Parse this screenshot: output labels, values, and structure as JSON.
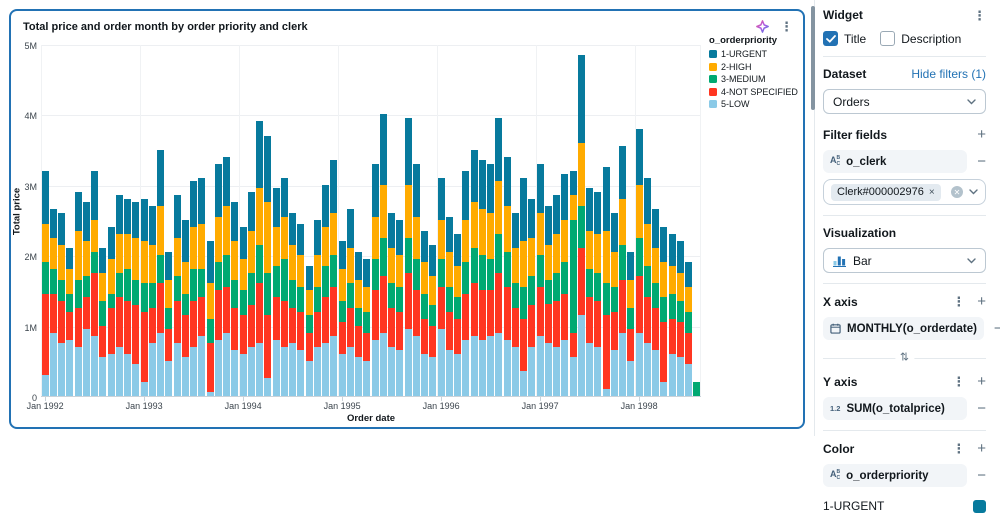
{
  "accent": "#2272B4",
  "card": {
    "title": "Total price and order month by order priority and clerk",
    "kebab_icon": "kebab-menu",
    "sparkle_icon": "ai-assistant"
  },
  "chart_data": {
    "type": "bar",
    "stacked": true,
    "title": "Total price and order month by order priority and clerk",
    "xlabel": "Order date",
    "ylabel": "Total price",
    "values_unit": "millions",
    "ylim": [
      0,
      5
    ],
    "y_ticks": [
      "0",
      "1M",
      "2M",
      "3M",
      "4M",
      "5M"
    ],
    "legend_title": "o_orderpriority",
    "legend_order": [
      "1-URGENT",
      "2-HIGH",
      "3-MEDIUM",
      "4-NOT SPECIFIED",
      "5-LOW"
    ],
    "legend_position": "right",
    "grid": true,
    "categories": [
      "Jan 1992",
      "Feb 1992",
      "Mar 1992",
      "Apr 1992",
      "May 1992",
      "Jun 1992",
      "Jul 1992",
      "Aug 1992",
      "Sep 1992",
      "Oct 1992",
      "Nov 1992",
      "Dec 1992",
      "Jan 1993",
      "Feb 1993",
      "Mar 1993",
      "Apr 1993",
      "May 1993",
      "Jun 1993",
      "Jul 1993",
      "Aug 1993",
      "Sep 1993",
      "Oct 1993",
      "Nov 1993",
      "Dec 1993",
      "Jan 1994",
      "Feb 1994",
      "Mar 1994",
      "Apr 1994",
      "May 1994",
      "Jun 1994",
      "Jul 1994",
      "Aug 1994",
      "Sep 1994",
      "Oct 1994",
      "Nov 1994",
      "Dec 1994",
      "Jan 1995",
      "Feb 1995",
      "Mar 1995",
      "Apr 1995",
      "May 1995",
      "Jun 1995",
      "Jul 1995",
      "Aug 1995",
      "Sep 1995",
      "Oct 1995",
      "Nov 1995",
      "Dec 1995",
      "Jan 1996",
      "Feb 1996",
      "Mar 1996",
      "Apr 1996",
      "May 1996",
      "Jun 1996",
      "Jul 1996",
      "Aug 1996",
      "Sep 1996",
      "Oct 1996",
      "Nov 1996",
      "Dec 1996",
      "Jan 1997",
      "Feb 1997",
      "Mar 1997",
      "Apr 1997",
      "May 1997",
      "Jun 1997",
      "Jul 1997",
      "Aug 1997",
      "Sep 1997",
      "Oct 1997",
      "Nov 1997",
      "Dec 1997",
      "Jan 1998",
      "Feb 1998",
      "Mar 1998",
      "Apr 1998",
      "May 1998",
      "Jun 1998",
      "Jul 1998",
      "Aug 1998"
    ],
    "series": [
      {
        "name": "5-LOW",
        "color": "#8BCAE7",
        "values": [
          0.3,
          0.9,
          0.75,
          0.8,
          0.7,
          0.95,
          0.85,
          0.55,
          0.6,
          0.7,
          0.6,
          0.45,
          0.2,
          0.75,
          0.9,
          0.5,
          0.75,
          0.55,
          0.7,
          0.85,
          0.05,
          0.8,
          0.9,
          0.65,
          0.6,
          0.7,
          0.75,
          0.25,
          0.8,
          0.7,
          0.75,
          0.65,
          0.5,
          0.7,
          0.75,
          0.85,
          0.6,
          0.7,
          0.55,
          0.5,
          0.8,
          0.9,
          0.7,
          0.65,
          0.95,
          0.85,
          0.6,
          0.55,
          0.95,
          0.65,
          0.6,
          0.8,
          0.85,
          0.8,
          0.85,
          0.9,
          0.8,
          0.7,
          0.35,
          0.7,
          0.85,
          0.75,
          0.7,
          0.8,
          0.55,
          1.15,
          0.75,
          0.7,
          0.1,
          0.65,
          0.9,
          0.5,
          0.9,
          0.75,
          0.65,
          0.2,
          0.6,
          0.55,
          0.45,
          0
        ]
      },
      {
        "name": "4-NOT SPECIFIED",
        "color": "#FF3621",
        "values": [
          1.15,
          0.55,
          0.6,
          0.4,
          0.55,
          0.45,
          0.9,
          0.45,
          0.65,
          0.7,
          0.75,
          0.85,
          1.0,
          0.5,
          0.7,
          0.45,
          0.6,
          0.6,
          0.65,
          0.55,
          0.7,
          0.7,
          0.65,
          0.6,
          0.55,
          0.6,
          0.85,
          0.9,
          0.6,
          0.65,
          0.5,
          0.55,
          0.4,
          0.5,
          0.65,
          0.7,
          0.45,
          0.55,
          0.45,
          0.4,
          0.7,
          0.8,
          0.55,
          0.55,
          0.8,
          0.65,
          0.5,
          0.45,
          0.6,
          0.55,
          0.5,
          0.65,
          0.75,
          0.7,
          0.65,
          0.85,
          0.75,
          0.55,
          0.75,
          0.6,
          0.7,
          0.55,
          0.65,
          0.65,
          0.35,
          0.95,
          0.65,
          0.65,
          1.05,
          0.55,
          0.75,
          0.45,
          0.8,
          0.65,
          0.6,
          0.85,
          0.5,
          0.5,
          0.45,
          0
        ]
      },
      {
        "name": "3-MEDIUM",
        "color": "#00A972",
        "values": [
          0.45,
          0.35,
          0.3,
          0.25,
          0.4,
          0.3,
          0.3,
          0.35,
          0.2,
          0.35,
          0.45,
          0.35,
          0.4,
          0.35,
          0.4,
          0.3,
          0.35,
          0.3,
          0.45,
          0.4,
          0.35,
          0.4,
          0.45,
          0.4,
          0.35,
          0.45,
          0.55,
          0.6,
          0.45,
          0.6,
          0.4,
          0.35,
          0.25,
          0.35,
          0.45,
          0.45,
          0.3,
          0.35,
          0.25,
          0.3,
          0.45,
          0.55,
          0.35,
          0.35,
          0.5,
          0.45,
          0.35,
          0.3,
          0.4,
          0.35,
          0.3,
          0.45,
          0.5,
          0.5,
          0.45,
          0.55,
          0.5,
          0.35,
          0.45,
          0.4,
          0.45,
          0.35,
          0.4,
          0.45,
          1.6,
          0.6,
          0.4,
          0.4,
          0.45,
          0.35,
          0.5,
          0.3,
          0.55,
          0.45,
          0.35,
          0.35,
          0.35,
          0.3,
          0.3,
          0.2
        ]
      },
      {
        "name": "2-HIGH",
        "color": "#FFAB00",
        "values": [
          0.55,
          0.45,
          0.5,
          0.35,
          0.7,
          0.5,
          0.45,
          0.4,
          0.5,
          0.55,
          0.5,
          0.6,
          0.6,
          0.55,
          0.7,
          0.4,
          0.55,
          0.45,
          0.6,
          0.65,
          0.5,
          0.65,
          0.7,
          0.55,
          0.45,
          0.6,
          0.8,
          1.0,
          0.55,
          0.6,
          0.5,
          0.45,
          0.35,
          0.45,
          0.55,
          0.6,
          0.45,
          0.5,
          0.4,
          0.35,
          0.6,
          0.75,
          0.5,
          0.45,
          0.75,
          0.6,
          0.45,
          0.4,
          0.55,
          0.5,
          0.45,
          0.6,
          0.65,
          0.65,
          0.65,
          0.75,
          0.65,
          0.5,
          0.65,
          0.55,
          0.6,
          0.5,
          0.55,
          0.6,
          0.35,
          0.9,
          0.55,
          0.55,
          0.75,
          0.5,
          0.65,
          0.4,
          0.75,
          0.6,
          0.5,
          0.5,
          0.4,
          0.4,
          0.35,
          0
        ]
      },
      {
        "name": "1-URGENT",
        "color": "#077A9D",
        "values": [
          0.75,
          0.4,
          0.45,
          0.3,
          0.55,
          0.55,
          0.7,
          0.35,
          0.45,
          0.55,
          0.5,
          0.5,
          0.6,
          0.55,
          0.8,
          0.4,
          0.6,
          0.6,
          0.65,
          0.65,
          0.6,
          0.75,
          0.7,
          0.55,
          0.45,
          0.55,
          0.95,
          0.95,
          0.55,
          0.55,
          0.45,
          0.45,
          0.35,
          0.5,
          0.6,
          0.75,
          0.4,
          0.55,
          0.4,
          0.4,
          0.75,
          1.0,
          0.5,
          0.5,
          0.95,
          0.75,
          0.45,
          0.45,
          0.6,
          0.5,
          0.45,
          0.7,
          0.75,
          0.7,
          0.7,
          0.9,
          0.7,
          0.5,
          0.9,
          0.55,
          0.7,
          0.55,
          0.55,
          0.65,
          0.35,
          1.25,
          0.6,
          0.6,
          0.9,
          0.55,
          0.75,
          0.4,
          0.8,
          0.65,
          0.55,
          0.5,
          0.45,
          0.45,
          0.35,
          0
        ]
      }
    ]
  },
  "panel": {
    "widget": {
      "label": "Widget"
    },
    "checkboxes": {
      "title": "Title",
      "description": "Description",
      "title_checked": true,
      "description_checked": false
    },
    "dataset": {
      "label": "Dataset",
      "link": "Hide filters (1)",
      "value": "Orders"
    },
    "filter_fields": {
      "label": "Filter fields",
      "field": "o_clerk",
      "chip": "Clerk#000002976",
      "chip_remove": "×"
    },
    "visualization": {
      "label": "Visualization",
      "value": "Bar"
    },
    "x_axis": {
      "label": "X axis",
      "field": "MONTHLY(o_orderdate)"
    },
    "y_axis": {
      "label": "Y axis",
      "field": "SUM(o_totalprice)"
    },
    "color": {
      "label": "Color",
      "field": "o_orderpriority",
      "first_value": "1-URGENT",
      "first_color": "#077A9D"
    }
  }
}
